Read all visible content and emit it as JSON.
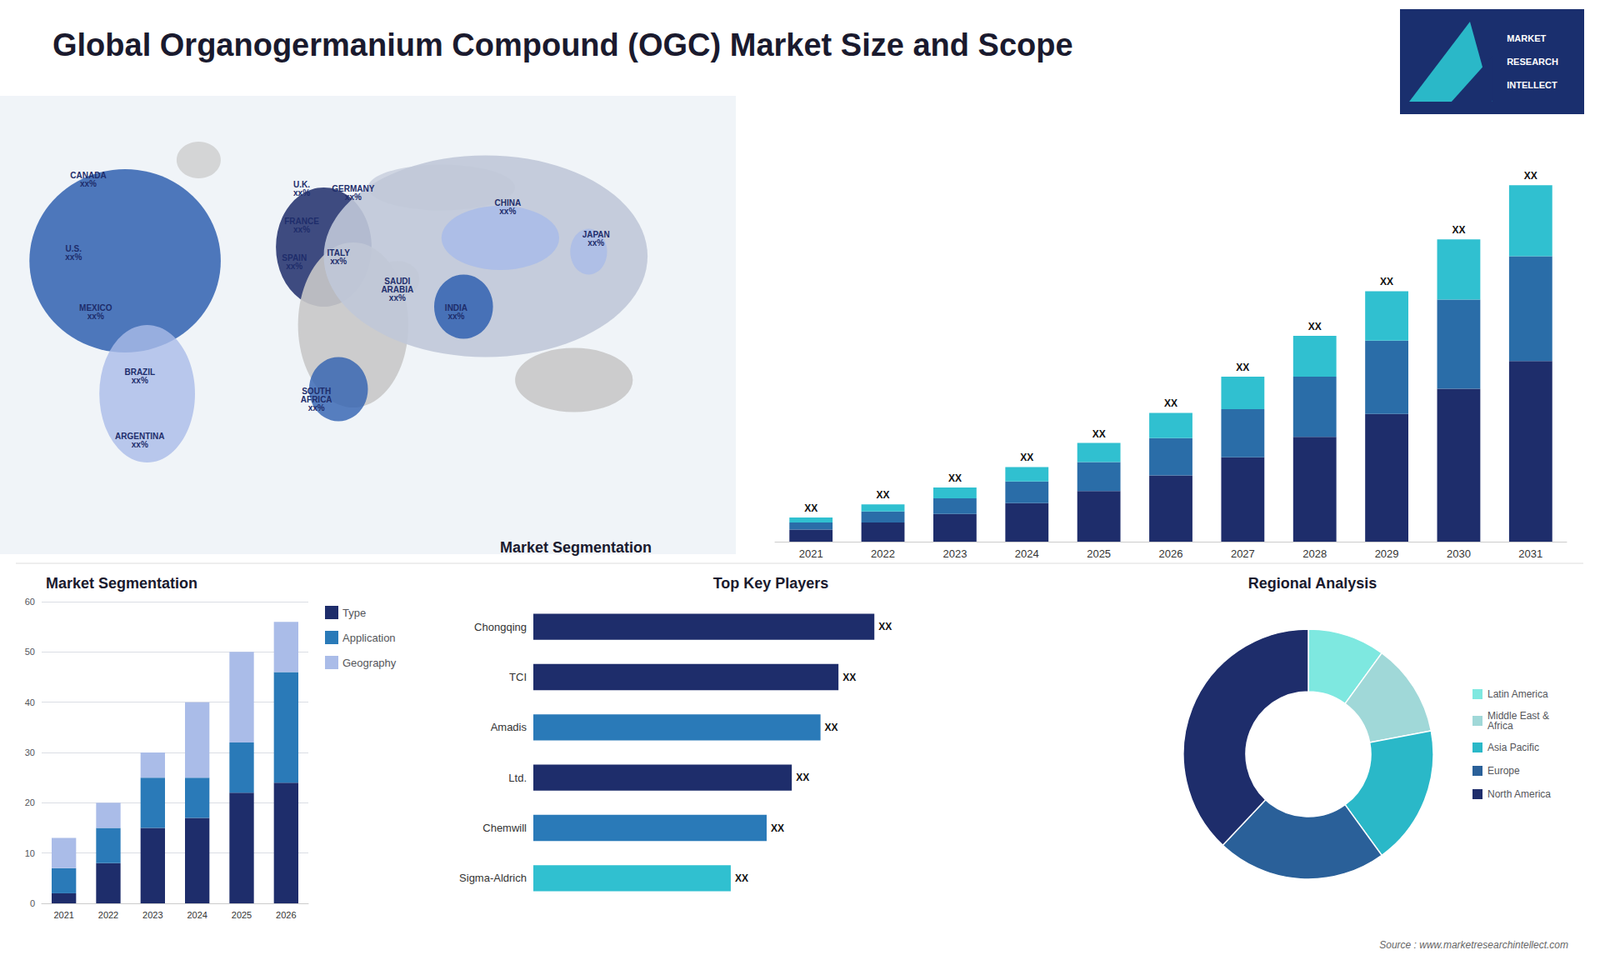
{
  "chart_data": [
    {
      "type": "bar",
      "title": "Global Organogermanium Compound (OGC) Market Size and Scope",
      "stacked": true,
      "categories": [
        "2021",
        "2022",
        "2023",
        "2024",
        "2025",
        "2026",
        "2027",
        "2028",
        "2029",
        "2030",
        "2031"
      ],
      "series": [
        {
          "color": "#1e2d6b",
          "values": [
            1.0,
            1.6,
            2.3,
            3.2,
            4.2,
            5.5,
            7.0,
            8.7,
            10.6,
            12.7,
            15.0
          ]
        },
        {
          "color": "#2a6da8",
          "values": [
            0.6,
            0.9,
            1.3,
            1.8,
            2.4,
            3.1,
            4.0,
            5.0,
            6.1,
            7.4,
            8.7
          ]
        },
        {
          "color": "#30c0d0",
          "values": [
            0.4,
            0.6,
            0.9,
            1.2,
            1.6,
            2.1,
            2.7,
            3.4,
            4.1,
            5.0,
            5.9
          ],
          "value_labels": [
            "XX",
            "XX",
            "XX",
            "XX",
            "XX",
            "XX",
            "XX",
            "XX",
            "XX",
            "XX",
            "XX"
          ]
        }
      ],
      "ylim": [
        0,
        34.6
      ],
      "grid": false,
      "tick_labels": "x",
      "annotations": [
        "MARKET",
        "RESEARCH",
        "INTELLECT",
        "Source : www.marketresearchintellect.com"
      ]
    },
    {
      "type": "map",
      "annotations": [
        "CANADA\nxx%",
        "U.S.\nxx%",
        "MEXICO\nxx%",
        "BRAZIL\nxx%",
        "ARGENTINA\nxx%",
        "U.K.\nxx%",
        "FRANCE\nxx%",
        "SPAIN\nxx%",
        "GERMANY\nxx%",
        "ITALY\nxx%",
        "SAUDI\nARABIA\nxx%",
        "SOUTH\nAFRICA\nxx%",
        "CHINA\nxx%",
        "INDIA\nxx%",
        "JAPAN\nxx%"
      ]
    },
    {
      "type": "bar",
      "title": "Market Segmentation",
      "stacked": true,
      "categories": [
        "2021",
        "2022",
        "2023",
        "2024",
        "2025",
        "2026"
      ],
      "series": [
        {
          "name": "Type",
          "color": "#1e2d6b",
          "values": [
            2,
            8,
            15,
            17,
            22,
            24
          ]
        },
        {
          "name": "Application",
          "color": "#2a7ab8",
          "values": [
            5,
            7,
            10,
            8,
            10,
            22
          ]
        },
        {
          "name": "Geography",
          "color": "#aabce8",
          "values": [
            6,
            5,
            5,
            15,
            18,
            10
          ]
        }
      ],
      "ylim": [
        0,
        60
      ],
      "yticks": [
        0,
        10,
        20,
        30,
        40,
        50,
        60
      ],
      "grid": true,
      "legend": "right"
    },
    {
      "type": "bar",
      "title": "Top Key Players",
      "orientation": "horizontal",
      "categories": [
        "Chongqing",
        "TCI",
        "Amadis",
        "Ltd.",
        "Chemwill",
        "Sigma-Aldrich"
      ],
      "values": [
        9.5,
        8.5,
        8.0,
        7.2,
        6.5,
        5.5
      ],
      "value_labels": [
        "XX",
        "XX",
        "XX",
        "XX",
        "XX",
        "XX"
      ],
      "colors": [
        "#1e2d6b",
        "#1e2d6b",
        "#2a7ab8",
        "#1e2d6b",
        "#2a7ab8",
        "#30c0d0"
      ],
      "xlim": [
        0,
        13
      ],
      "grid": false,
      "tick_labels": "y",
      "annotations": [
        "Market Segmentation"
      ]
    },
    {
      "type": "donut",
      "title": "Regional Analysis",
      "categories": [
        "Latin America",
        "Middle East &\nAfrica",
        "Asia Pacific",
        "Europe",
        "North America"
      ],
      "values": [
        10,
        12,
        18,
        22,
        38
      ],
      "colors": [
        "#7ee8e0",
        "#a0d8d8",
        "#2ab8c8",
        "#2a6099",
        "#1e2d6b"
      ],
      "legend": "right"
    }
  ]
}
